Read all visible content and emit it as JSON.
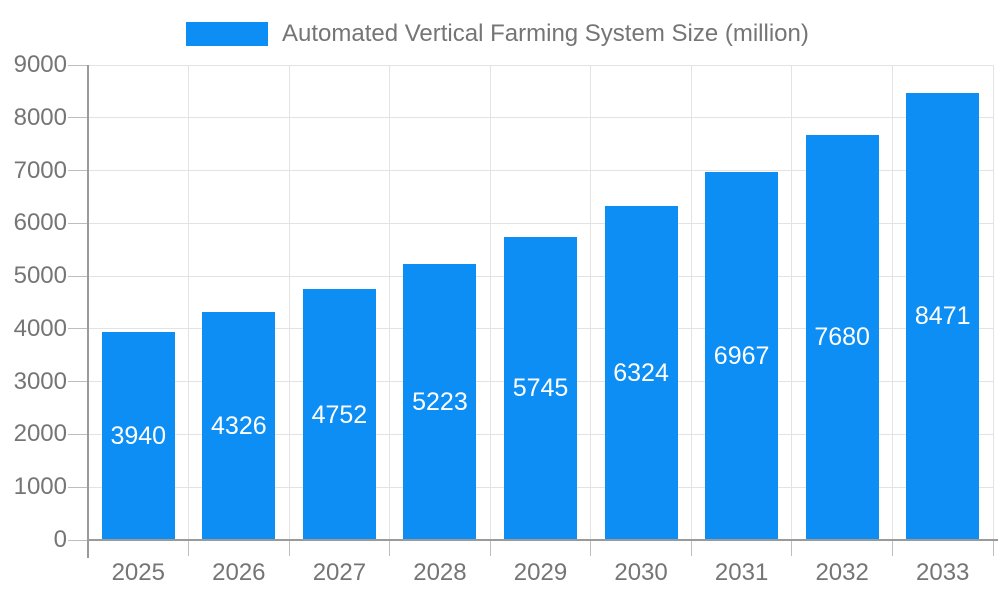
{
  "chart_data": {
    "type": "bar",
    "title": "Automated Vertical Farming System Size (million)",
    "categories": [
      "2025",
      "2026",
      "2027",
      "2028",
      "2029",
      "2030",
      "2031",
      "2032",
      "2033"
    ],
    "values": [
      3940,
      4326,
      4752,
      5223,
      5745,
      6324,
      6967,
      7680,
      8471
    ],
    "series": [
      {
        "name": "Automated Vertical Farming System Size (million)",
        "values": [
          3940,
          4326,
          4752,
          5223,
          5745,
          6324,
          6967,
          7680,
          8471
        ]
      }
    ],
    "xlabel": "",
    "ylabel": "",
    "ylim": [
      0,
      9000
    ],
    "ytick_step": 1000,
    "ytick_labels": [
      "0",
      "1000",
      "2000",
      "3000",
      "4000",
      "5000",
      "6000",
      "7000",
      "8000",
      "9000"
    ],
    "grid": true,
    "legend_position": "top-center",
    "value_labels": "inside-center"
  },
  "colors": {
    "bar": "#0C8EF5",
    "bar_label_text": "#FFFFFF",
    "axis_line": "#9A9A9A",
    "grid_line": "#E3E3E3",
    "tick_line": "#BDBDBD",
    "axis_text": "#757575",
    "legend_text": "#757575",
    "background": "#FFFFFF"
  }
}
